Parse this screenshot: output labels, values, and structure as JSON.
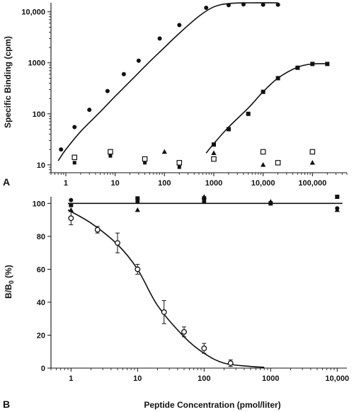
{
  "chart_data": [
    {
      "panel_label": "A",
      "type": "scatter",
      "xscale": "log",
      "yscale": "log",
      "xlim": [
        0.5,
        500000
      ],
      "ylim": [
        7,
        15000
      ],
      "xticks": [
        {
          "v": 1,
          "label": "1"
        },
        {
          "v": 10,
          "label": "10"
        },
        {
          "v": 100,
          "label": "100"
        },
        {
          "v": 1000,
          "label": "1000"
        },
        {
          "v": 10000,
          "label": "10,000"
        },
        {
          "v": 100000,
          "label": "100,000"
        }
      ],
      "yticks": [
        {
          "v": 10,
          "label": "10"
        },
        {
          "v": 100,
          "label": "100"
        },
        {
          "v": 1000,
          "label": "1000"
        },
        {
          "v": 10000,
          "label": "10,000"
        }
      ],
      "ylabel": "Specific Binding (cpm)",
      "series": [
        {
          "marker": "filled-circle",
          "x": [
            0.8,
            1.5,
            3,
            7,
            15,
            30,
            80,
            200,
            700,
            2000,
            4000,
            10000,
            20000
          ],
          "y": [
            20,
            55,
            120,
            280,
            600,
            1100,
            3000,
            5500,
            12000,
            13500,
            14000,
            13800,
            13800
          ]
        },
        {
          "marker": "filled-square",
          "x": [
            1000,
            2000,
            5000,
            10000,
            20000,
            50000,
            100000,
            200000
          ],
          "y": [
            25,
            50,
            100,
            270,
            500,
            800,
            950,
            950
          ]
        },
        {
          "marker": "open-square",
          "x": [
            1.5,
            8,
            40,
            200,
            1000,
            10000,
            20000,
            100000
          ],
          "y": [
            14,
            18,
            13,
            11,
            13,
            18,
            11,
            18
          ]
        },
        {
          "marker": "filled-square-small",
          "x": [
            1.5,
            8,
            40,
            200
          ],
          "y": [
            11,
            15,
            11,
            9
          ]
        },
        {
          "marker": "filled-triangle",
          "x": [
            100,
            1000,
            10000,
            100000
          ],
          "y": [
            18,
            17,
            10,
            11
          ]
        }
      ],
      "curves": [
        {
          "x": [
            0.7,
            1,
            2,
            5,
            10,
            20,
            50,
            100,
            200,
            500,
            1000,
            2000,
            5000,
            20000
          ],
          "y": [
            12,
            20,
            45,
            110,
            220,
            430,
            1050,
            2000,
            3800,
            8200,
            12500,
            14500,
            15000,
            15000
          ]
        },
        {
          "x": [
            700,
            1000,
            2000,
            5000,
            10000,
            20000,
            50000,
            100000,
            200000
          ],
          "y": [
            17,
            26,
            55,
            130,
            270,
            500,
            820,
            950,
            960
          ]
        }
      ]
    },
    {
      "panel_label": "B",
      "type": "scatter",
      "xscale": "log",
      "xlim": [
        0.5,
        14000
      ],
      "ylim": [
        0,
        104
      ],
      "xticks": [
        {
          "v": 1,
          "label": "1"
        },
        {
          "v": 10,
          "label": "10"
        },
        {
          "v": 100,
          "label": "100"
        },
        {
          "v": 1000,
          "label": "1000"
        },
        {
          "v": 10000,
          "label": "10,000"
        }
      ],
      "yticks": [
        {
          "v": 0,
          "label": "0"
        },
        {
          "v": 20,
          "label": "20"
        },
        {
          "v": 40,
          "label": "40"
        },
        {
          "v": 60,
          "label": "60"
        },
        {
          "v": 80,
          "label": "80"
        },
        {
          "v": 100,
          "label": "100"
        }
      ],
      "ylabel": "B/B",
      "ylabel_sub": "0",
      "ylabel_suffix": " (%)",
      "xlabel": "Peptide Concentration (pmol/liter)",
      "series": [
        {
          "marker": "open-circle",
          "x": [
            1,
            2.5,
            5,
            10,
            25,
            50,
            100,
            250
          ],
          "y": [
            91,
            84,
            76,
            60,
            34,
            22,
            12,
            3
          ],
          "err": [
            4,
            2,
            6,
            3,
            7,
            3,
            3,
            2
          ]
        },
        {
          "marker": "filled-circle",
          "x": [
            1,
            10,
            100,
            1000,
            10000
          ],
          "y": [
            102,
            101,
            101,
            100,
            97
          ]
        },
        {
          "marker": "filled-square",
          "x": [
            1,
            10,
            100,
            1000,
            10000
          ],
          "y": [
            99,
            103,
            103,
            100,
            104
          ]
        },
        {
          "marker": "filled-triangle",
          "x": [
            1,
            10,
            100,
            1000,
            10000
          ],
          "y": [
            96,
            96,
            104,
            101,
            96
          ]
        }
      ],
      "curves": [
        {
          "x": [
            0.9,
            2,
            5,
            10,
            20,
            50,
            100,
            200,
            500,
            800
          ],
          "y": [
            96,
            88,
            75,
            60,
            38,
            19,
            9,
            3,
            1,
            0.5
          ]
        },
        {
          "x": [
            0.9,
            12000
          ],
          "y": [
            100,
            100
          ]
        }
      ]
    }
  ]
}
